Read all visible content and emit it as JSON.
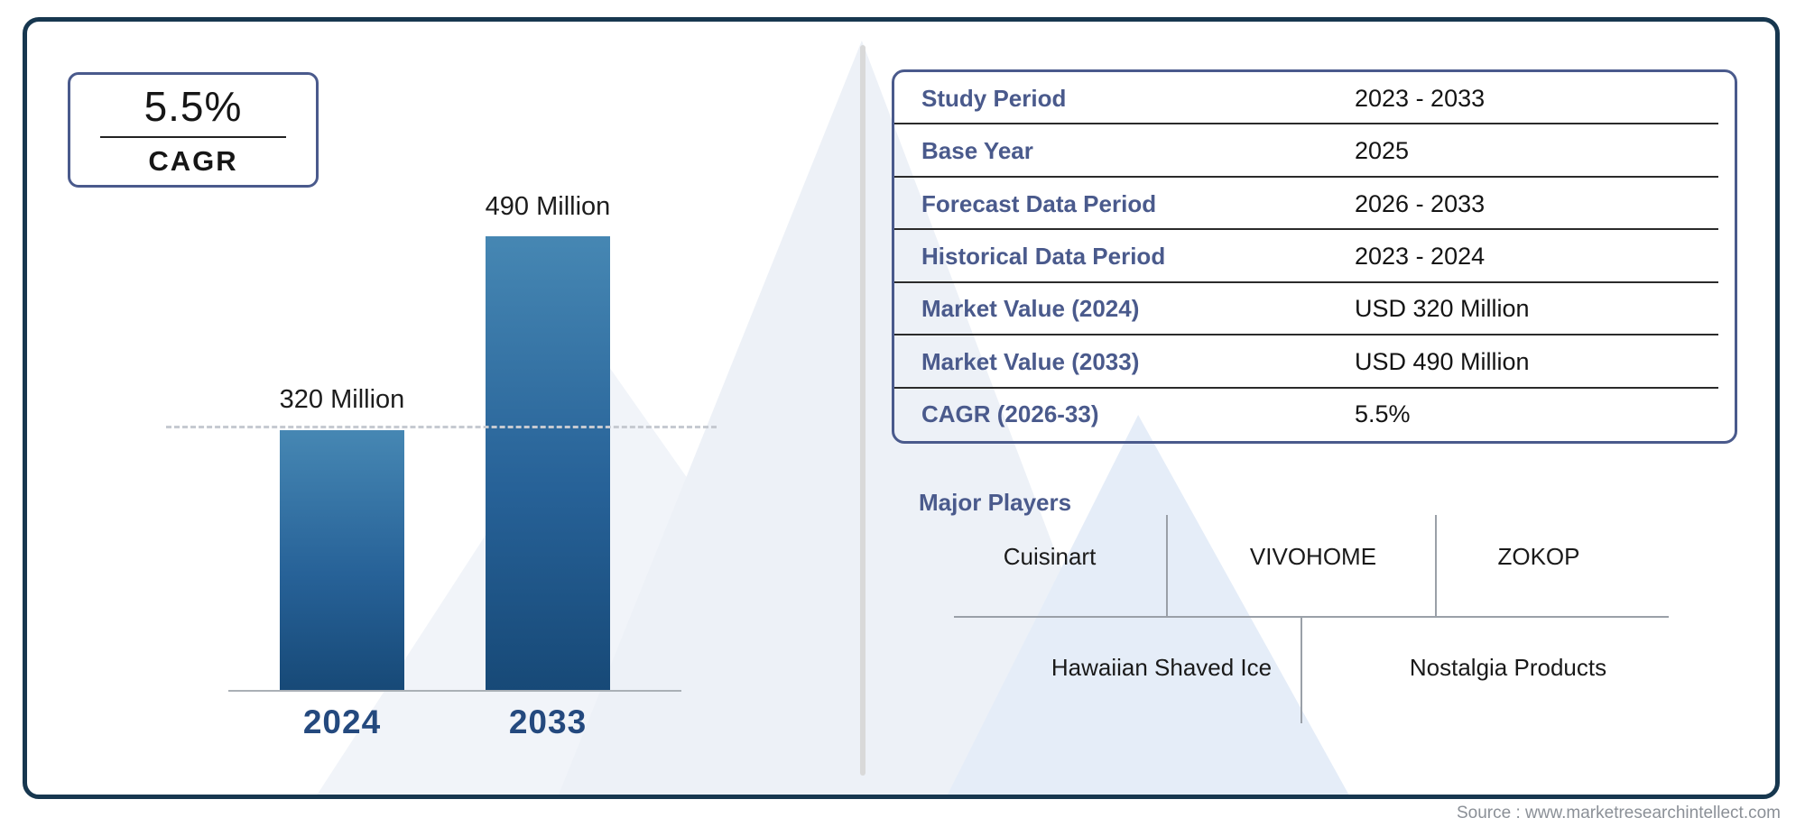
{
  "cagr_box": {
    "value": "5.5%",
    "label": "CAGR"
  },
  "chart": {
    "bars": [
      {
        "year": "2024",
        "value_label": "320 Million"
      },
      {
        "year": "2033",
        "value_label": "490 Million"
      }
    ]
  },
  "chart_data": {
    "type": "bar",
    "categories": [
      "2024",
      "2033"
    ],
    "values": [
      320,
      490
    ],
    "unit": "USD Million",
    "title": "",
    "xlabel": "",
    "ylabel": "",
    "ylim": [
      0,
      520
    ],
    "grid": "off",
    "annotations": [
      "320 Million",
      "490 Million"
    ],
    "reference_line": {
      "y": 320,
      "style": "dashed"
    },
    "bar_color_gradient": [
      "#4687b3",
      "#174977"
    ]
  },
  "table": {
    "rows": [
      {
        "label": "Study Period",
        "value": "2023 - 2033"
      },
      {
        "label": "Base Year",
        "value": "2025"
      },
      {
        "label": "Forecast Data Period",
        "value": "2026 - 2033"
      },
      {
        "label": "Historical Data Period",
        "value": "2023 - 2024"
      },
      {
        "label": "Market Value (2024)",
        "value": "USD 320 Million"
      },
      {
        "label": "Market Value (2033)",
        "value": "USD 490 Million"
      },
      {
        "label": "CAGR (2026-33)",
        "value": "5.5%"
      }
    ]
  },
  "major_players": {
    "title": "Major Players",
    "row1": [
      "Cuisinart",
      "VIVOHOME",
      "ZOKOP"
    ],
    "row2": [
      "Hawaiian Shaved Ice",
      "Nostalgia Products"
    ]
  },
  "source": "Source : www.marketresearchintellect.com",
  "colors": {
    "frame_border": "#17374f",
    "accent_slate": "#4a5a8c",
    "year_label": "#24497e",
    "bar_top": "#4687b3",
    "bar_bottom": "#174977",
    "watermark": "#edf1f7",
    "source_text": "#8b9097"
  }
}
